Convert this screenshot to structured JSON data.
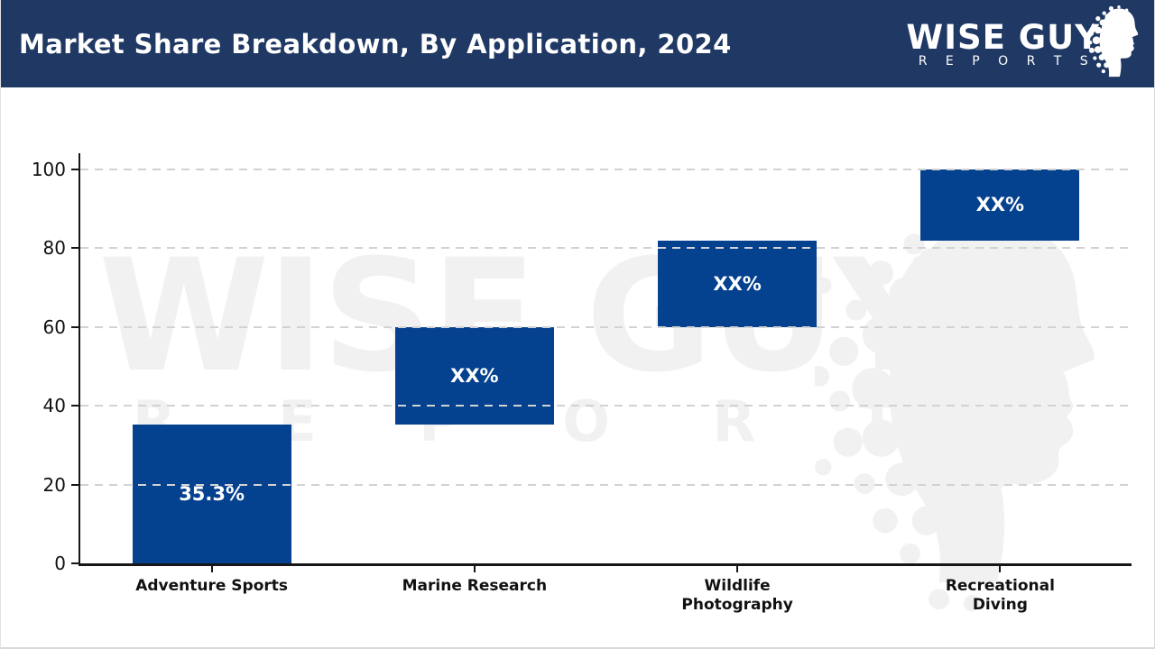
{
  "header": {
    "title": "Market Share Breakdown, By Application, 2024",
    "logo": {
      "name_top": "WISE GUY",
      "name_bottom": "R E P O R T S"
    }
  },
  "watermark": {
    "text_large": "WISE GUY",
    "text_small": "R E P O R T S"
  },
  "chart_data": {
    "type": "bar",
    "subtype": "waterfall-stacked-segments",
    "title": "Market Share Breakdown, By Application, 2024",
    "categories": [
      "Adventure Sports",
      "Marine Research",
      "Wildlife Photography",
      "Recreational Diving"
    ],
    "category_lines": [
      [
        "Adventure Sports"
      ],
      [
        "Marine Research"
      ],
      [
        "Wildlife",
        "Photography"
      ],
      [
        "Recreational",
        "Diving"
      ]
    ],
    "bars": [
      {
        "label": "Adventure Sports",
        "start": 0,
        "end": 35.3,
        "value_label": "35.3%"
      },
      {
        "label": "Marine Research",
        "start": 35.3,
        "end": 60,
        "value_label": "XX%"
      },
      {
        "label": "Wildlife Photography",
        "start": 60,
        "end": 82,
        "value_label": "XX%"
      },
      {
        "label": "Recreational Diving",
        "start": 82,
        "end": 100,
        "value_label": "XX%"
      }
    ],
    "y_ticks": [
      0,
      20,
      40,
      60,
      80,
      100
    ],
    "ylim": [
      0,
      104
    ],
    "grid": "dashed-horizontal",
    "legend": "none",
    "bar_color": "#04418f",
    "bar_label_color": "#ffffff"
  },
  "colors": {
    "header_bg": "#1f3864",
    "bar_blue": "#04418f",
    "chart_bg": "#ffffff",
    "grid_line": "#d2d2d2",
    "axis_line": "#161616",
    "watermark": "#f1f1f1"
  }
}
